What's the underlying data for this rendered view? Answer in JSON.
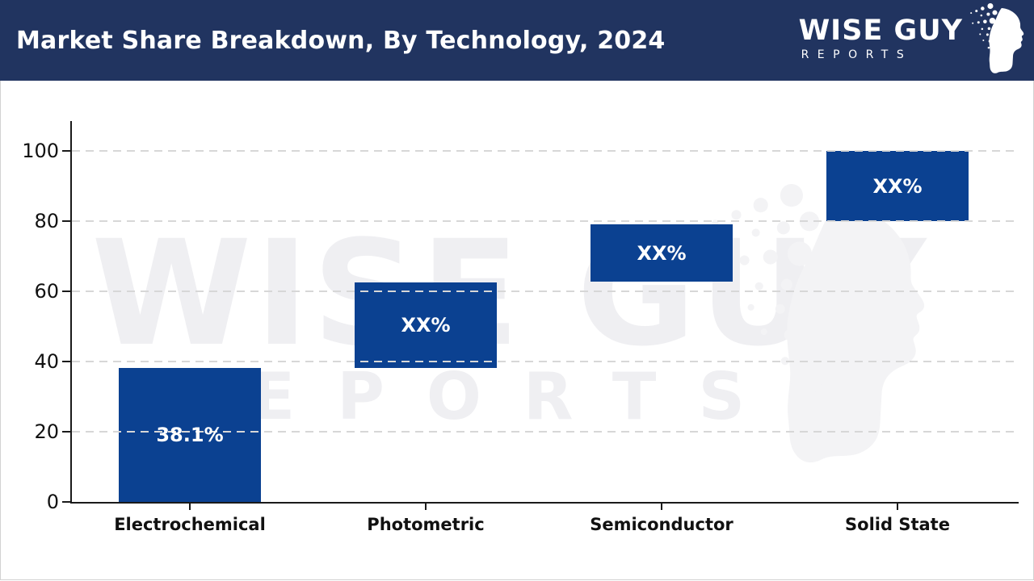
{
  "header": {
    "title": "Market Share Breakdown, By Technology, 2024",
    "bg_color": "#213460",
    "logo": {
      "line1": "WISE GUY",
      "line2": "REPORTS"
    }
  },
  "watermark": {
    "line1": "WISE GUY",
    "line2": "REPORTS",
    "color": "#efeff2"
  },
  "chart_data": {
    "type": "bar",
    "subtype": "waterfall-floating-bars",
    "title": "Market Share Breakdown, By Technology, 2024",
    "xlabel": "",
    "ylabel": "",
    "ylim": [
      0,
      107
    ],
    "yticks": [
      0,
      20,
      40,
      60,
      80,
      100
    ],
    "grid": "horizontal-dashed",
    "grid_color": "#d7d7d7",
    "axis_color": "#1a1a1a",
    "bar_color": "#0b4191",
    "bar_label_color": "#ffffff",
    "categories": [
      "Electrochemical",
      "Photometric",
      "Semiconductor",
      "Solid State"
    ],
    "segments": [
      {
        "category": "Electrochemical",
        "start": 0,
        "end": 38.1,
        "label": "38.1%"
      },
      {
        "category": "Photometric",
        "start": 38.1,
        "end": 62.6,
        "label": "XX%"
      },
      {
        "category": "Semiconductor",
        "start": 62.7,
        "end": 79.1,
        "label": "XX%"
      },
      {
        "category": "Solid State",
        "start": 79.9,
        "end": 100,
        "label": "XX%"
      }
    ]
  }
}
